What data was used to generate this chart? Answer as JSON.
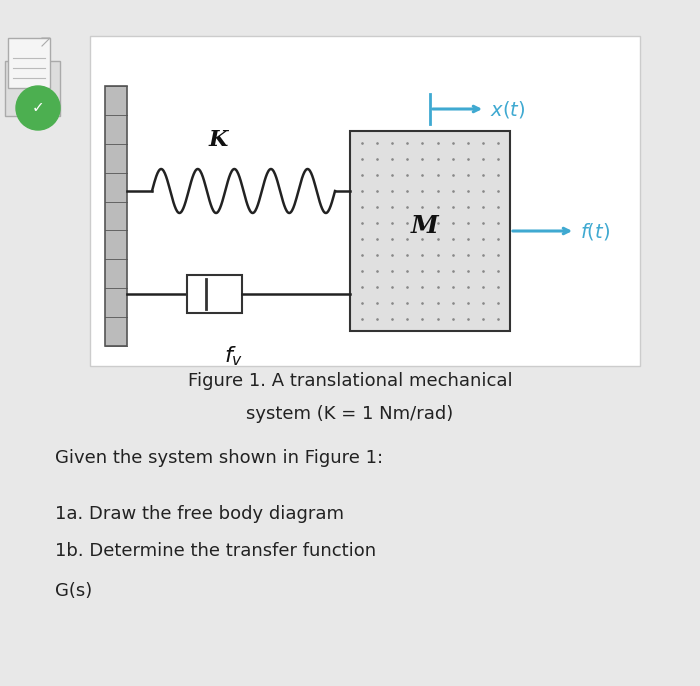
{
  "bg_color": "#e8e8e8",
  "diagram_bg": "#ffffff",
  "title_line1": "Figure 1. A translational mechanical",
  "title_line2": "system (K = 1 Nm/rad)",
  "body_line1": "Given the system shown in Figure 1:",
  "body_line2": "1a. Draw the free body diagram",
  "body_line3": "1b. Determine the transfer function",
  "body_line4": "G(s)",
  "label_K": "K",
  "label_M": "M",
  "label_fv": "$f_v$",
  "label_xt": "$x(t)$",
  "label_ft": "$f(t)$",
  "arrow_color": "#3fa9d1",
  "text_color": "#222222",
  "wall_color": "#aaaaaa",
  "mass_dot_color": "#888888",
  "checkmark_bg": "#4caf50"
}
